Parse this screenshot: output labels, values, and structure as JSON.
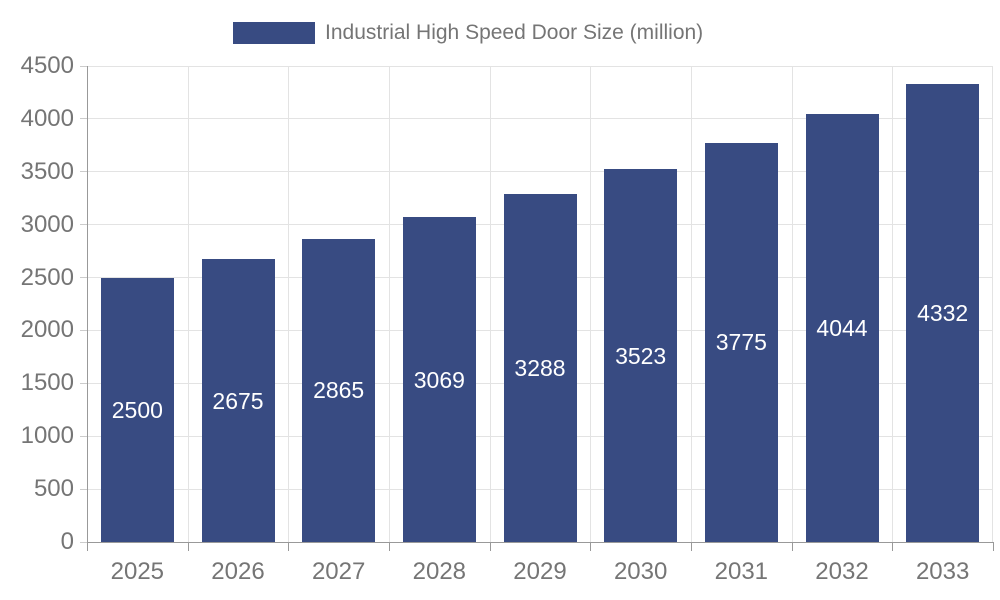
{
  "legend": {
    "label": "Industrial High Speed Door Size (million)"
  },
  "chart_data": {
    "type": "bar",
    "title": "Industrial High Speed Door Size (million)",
    "categories": [
      "2025",
      "2026",
      "2027",
      "2028",
      "2029",
      "2030",
      "2031",
      "2032",
      "2033"
    ],
    "values": [
      2500,
      2675,
      2865,
      3069,
      3288,
      3523,
      3775,
      4044,
      4332
    ],
    "xlabel": "",
    "ylabel": "",
    "ylim": [
      0,
      4500
    ],
    "yticks": [
      0,
      500,
      1000,
      1500,
      2000,
      2500,
      3000,
      3500,
      4000,
      4500
    ],
    "grid": true,
    "legend_position": "top-center",
    "value_labels_inside_bars": true,
    "colors": {
      "bar": "#384B82",
      "gridline": "#E3E3E3",
      "axis_line": "#999999",
      "axis_text": "#757575",
      "legend_text": "#757575",
      "value_label": "#FFFFFF",
      "background": "#FFFFFF"
    }
  }
}
